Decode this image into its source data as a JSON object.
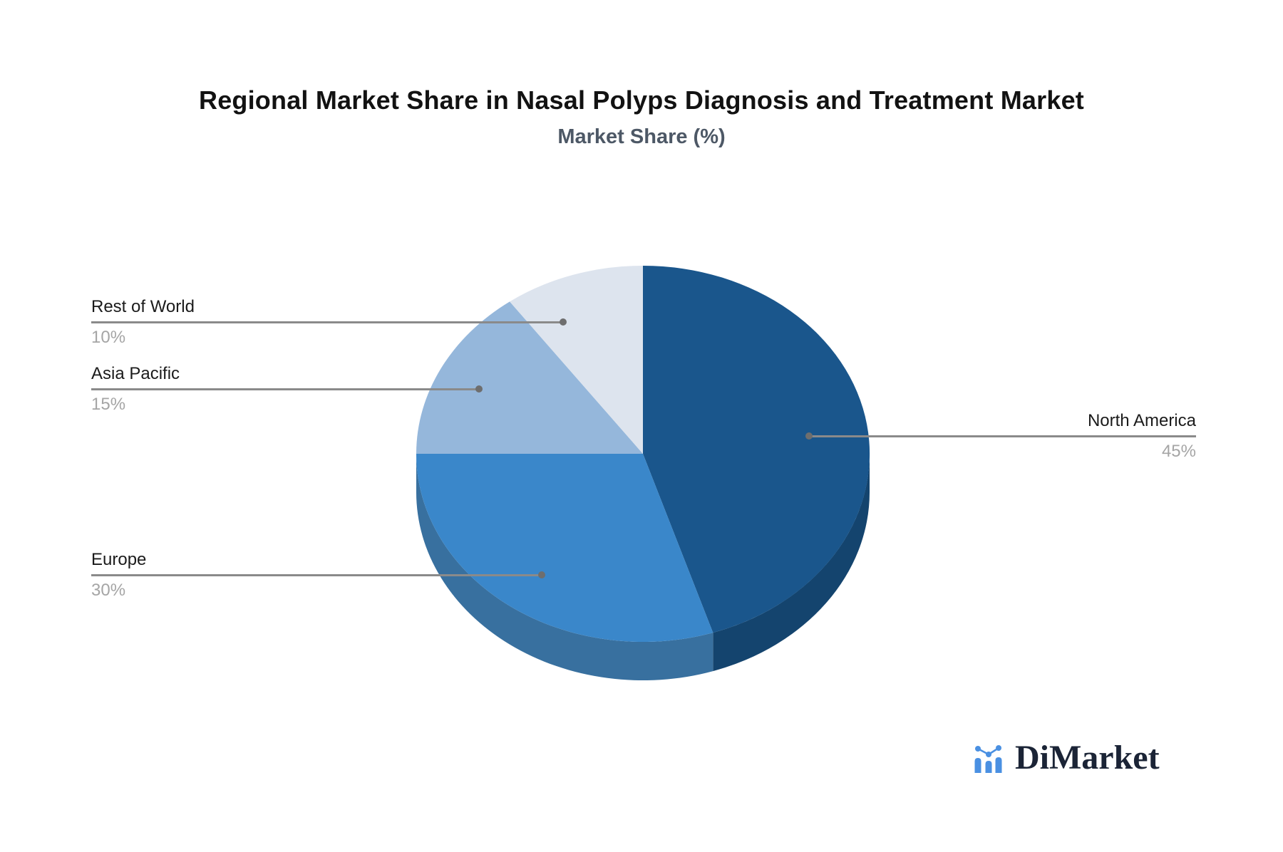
{
  "title": "Regional Market Share in Nasal Polyps Diagnosis and Treatment Market",
  "subtitle": "Market Share (%)",
  "chart_data": {
    "type": "pie",
    "style": "3d",
    "title": "Regional Market Share in Nasal Polyps Diagnosis and Treatment Market",
    "subtitle": "Market Share (%)",
    "unit": "%",
    "labels": [
      "North America",
      "Europe",
      "Asia Pacific",
      "Rest of World"
    ],
    "values": [
      45,
      30,
      15,
      10
    ],
    "display_values": [
      "45%",
      "30%",
      "15%",
      "10%"
    ],
    "colors": [
      "#1a568c",
      "#3a87ca",
      "#95b7db",
      "#dde4ee"
    ],
    "side_colors": [
      "#14446e",
      "#38709f",
      "#7fa5cd",
      "#c9d3e2"
    ],
    "start_angle_deg": 0,
    "direction": "clockwise",
    "legend_position": "leader-labels"
  },
  "palette": {
    "background": "#ffffff",
    "title_color": "#121212",
    "subtitle_color": "#4d5866",
    "label_color": "#1b1b1b",
    "percent_color": "#a5a5a5",
    "leader_line_color": "#8a8a8a",
    "leader_dot_color": "#6e6e6e"
  },
  "logo": {
    "text": "DiMarket",
    "icon": "bar-line-chart-icon",
    "text_color": "#1b2436",
    "accent_color": "#4a90e2"
  }
}
